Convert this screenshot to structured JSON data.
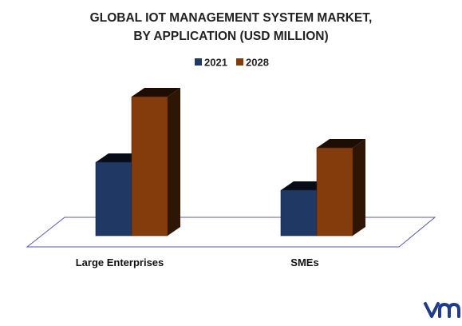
{
  "chart_data": {
    "type": "bar",
    "title_lines": [
      "GLOBAL IOT MANAGEMENT SYSTEM MARKET,",
      "BY APPLICATION (USD MILLION)"
    ],
    "categories": [
      "Large Enterprises",
      "SMEs"
    ],
    "series": [
      {
        "name": "2021",
        "values": [
          92,
          57
        ],
        "color": "#203864"
      },
      {
        "name": "2028",
        "values": [
          174,
          110
        ],
        "color": "#843C0C"
      }
    ],
    "legend_position": "top-center",
    "grid": false,
    "style": "3d-columns"
  },
  "logo": {
    "text": "vm",
    "color": "#1F3B8C"
  }
}
